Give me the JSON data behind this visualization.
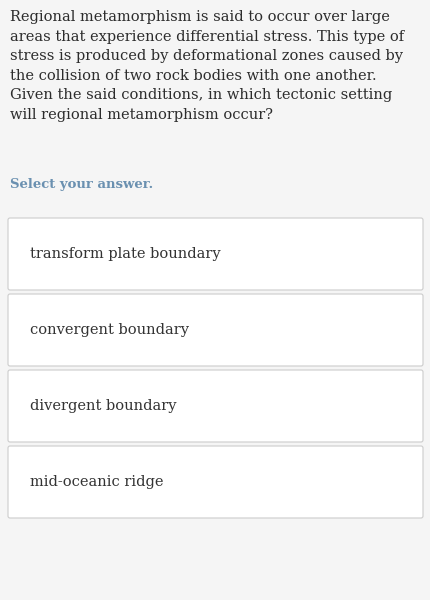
{
  "background_color": "#f5f5f5",
  "question_text": "Regional metamorphism is said to occur over large\nareas that experience differential stress. This type of\nstress is produced by deformational zones caused by\nthe collision of two rock bodies with one another.\nGiven the said conditions, in which tectonic setting\nwill regional metamorphism occur?",
  "select_label": "Select your answer.",
  "select_color": "#6a90b0",
  "question_color": "#2c2c2c",
  "options": [
    "transform plate boundary",
    "convergent boundary",
    "divergent boundary",
    "mid-oceanic ridge"
  ],
  "option_bg_color": "#ffffff",
  "option_border_color": "#cccccc",
  "option_text_color": "#333333",
  "option_font_size": 10.5,
  "question_font_size": 10.5,
  "select_font_size": 9.5,
  "fig_width": 4.31,
  "fig_height": 6.0,
  "dpi": 100
}
